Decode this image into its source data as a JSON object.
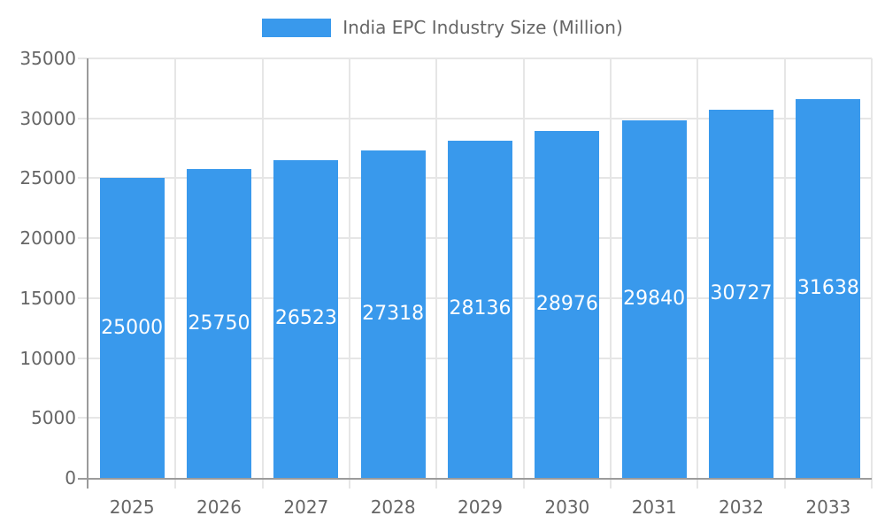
{
  "chart_data": {
    "type": "bar",
    "title": "India EPC Industry Size (Million)",
    "categories": [
      "2025",
      "2026",
      "2027",
      "2028",
      "2029",
      "2030",
      "2031",
      "2032",
      "2033"
    ],
    "series": [
      {
        "name": "India EPC Industry Size (Million)",
        "values": [
          25000,
          25750,
          26523,
          27318,
          28136,
          28976,
          29840,
          30727,
          31638
        ]
      }
    ],
    "value_labels_shown": true,
    "xlabel": "",
    "ylabel": "",
    "ylim": [
      0,
      35000
    ],
    "yticks": [
      0,
      5000,
      10000,
      15000,
      20000,
      25000,
      30000,
      35000
    ],
    "grid": true,
    "legend_position": "top",
    "colors": {
      "bar": "#3999EC",
      "grid": "#E6E6E6",
      "axis": "#9B9B9B",
      "tick_text": "#666666",
      "value_text": "#FFFFFF",
      "background": "#FFFFFF"
    }
  }
}
